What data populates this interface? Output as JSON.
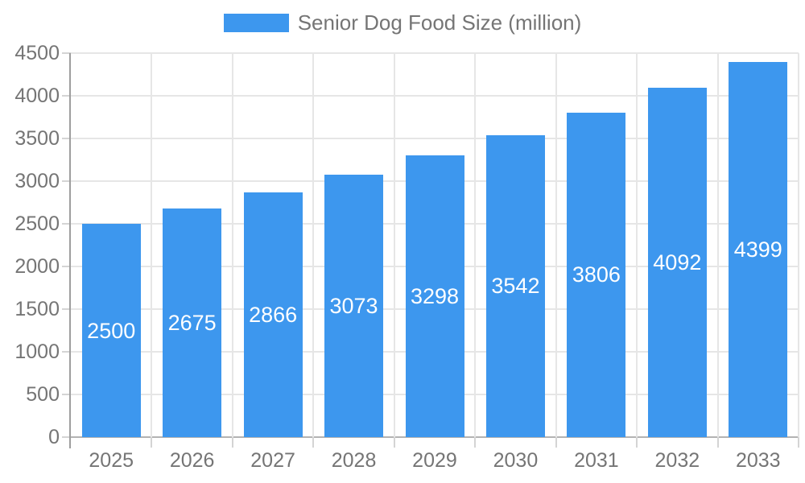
{
  "chart_data": {
    "type": "bar",
    "title": "Senior Dog Food Size (million)",
    "categories": [
      "2025",
      "2026",
      "2027",
      "2028",
      "2029",
      "2030",
      "2031",
      "2032",
      "2033"
    ],
    "values": [
      2500,
      2675,
      2866,
      3073,
      3298,
      3542,
      3806,
      4092,
      4399
    ],
    "series": [
      {
        "name": "Senior Dog Food Size (million)",
        "values": [
          2500,
          2675,
          2866,
          3073,
          3298,
          3542,
          3806,
          4092,
          4399
        ]
      }
    ],
    "xlabel": "",
    "ylabel": "",
    "ylim": [
      0,
      4500
    ],
    "ytick_step": 500,
    "ytick_labels": [
      "0",
      "500",
      "1000",
      "1500",
      "2000",
      "2500",
      "3000",
      "3500",
      "4000",
      "4500"
    ],
    "grid": "both",
    "legend_position": "top-center",
    "value_label_position": "inside-center",
    "colors": {
      "bar": "#3D97EE",
      "value_label": "#FFFFFF",
      "axis_text": "#757575",
      "gridline": "#E6E6E6",
      "zero_line": "#B3B3B3",
      "axis_line": "#9E9E9E",
      "tick": "#D4D4D4",
      "background": "#FFFFFF"
    }
  }
}
